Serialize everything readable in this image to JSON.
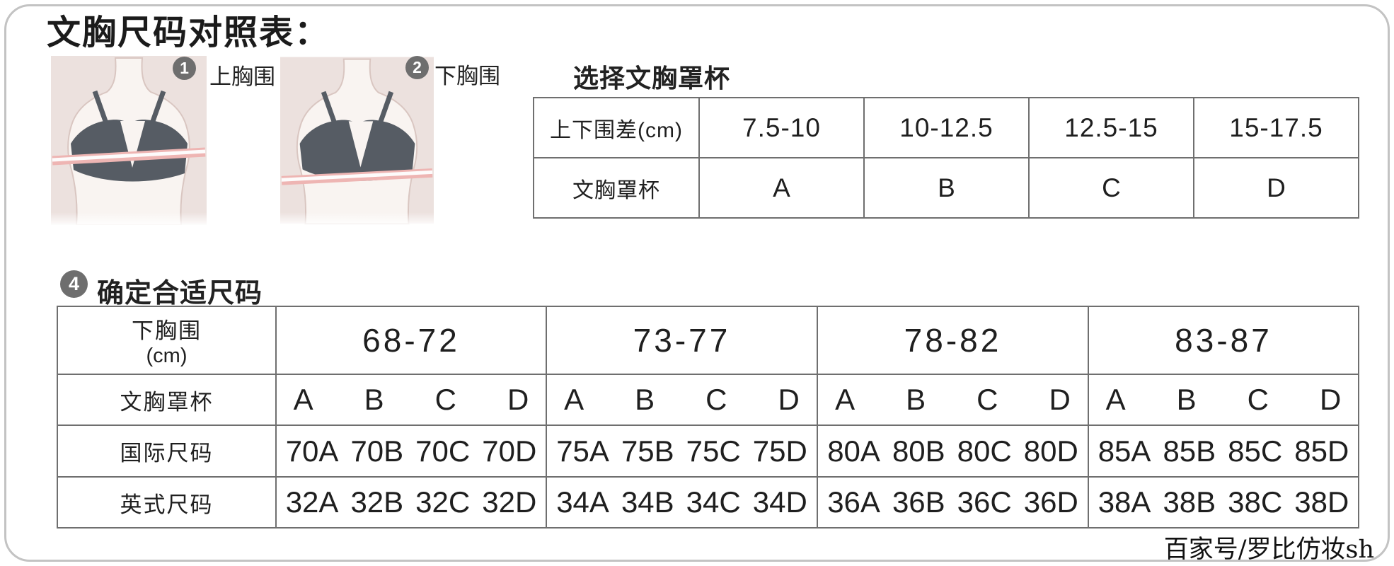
{
  "page": {
    "title": "文胸尺码对照表：",
    "watermark": "百家号/罗比仿妆sh"
  },
  "steps": [
    {
      "badge": "1",
      "label": "上胸围"
    },
    {
      "badge": "2",
      "label": "下胸围"
    },
    {
      "badge": "4",
      "label": "确定合适尺码"
    }
  ],
  "cup_table": {
    "heading": "选择文胸罩杯",
    "diff_label": "上下围差(cm)",
    "diff_values": [
      "7.5-10",
      "10-12.5",
      "12.5-15",
      "15-17.5"
    ],
    "cup_label": "文胸罩杯",
    "cup_values": [
      "A",
      "B",
      "C",
      "D"
    ]
  },
  "size_table": {
    "underbust_label": "下胸围",
    "underbust_unit": "(cm)",
    "underbust_ranges": [
      "68-72",
      "73-77",
      "78-82",
      "83-87"
    ],
    "rows": [
      {
        "label": "文胸罩杯",
        "groups": [
          [
            "A",
            "B",
            "C",
            "D"
          ],
          [
            "A",
            "B",
            "C",
            "D"
          ],
          [
            "A",
            "B",
            "C",
            "D"
          ],
          [
            "A",
            "B",
            "C",
            "D"
          ]
        ]
      },
      {
        "label": "国际尺码",
        "groups": [
          [
            "70A",
            "70B",
            "70C",
            "70D"
          ],
          [
            "75A",
            "75B",
            "75C",
            "75D"
          ],
          [
            "80A",
            "80B",
            "80C",
            "80D"
          ],
          [
            "85A",
            "85B",
            "85C",
            "85D"
          ]
        ]
      },
      {
        "label": "英式尺码",
        "groups": [
          [
            "32A",
            "32B",
            "32C",
            "32D"
          ],
          [
            "34A",
            "34B",
            "34C",
            "34D"
          ],
          [
            "36A",
            "36B",
            "36C",
            "36D"
          ],
          [
            "38A",
            "38B",
            "38C",
            "38D"
          ]
        ]
      }
    ]
  },
  "colors": {
    "bra": "#565c64",
    "tape": "#eeb5b3",
    "figure_bg": "#ece1de",
    "badge": "#6e6e6e",
    "table_border": "#6f6f6f"
  }
}
